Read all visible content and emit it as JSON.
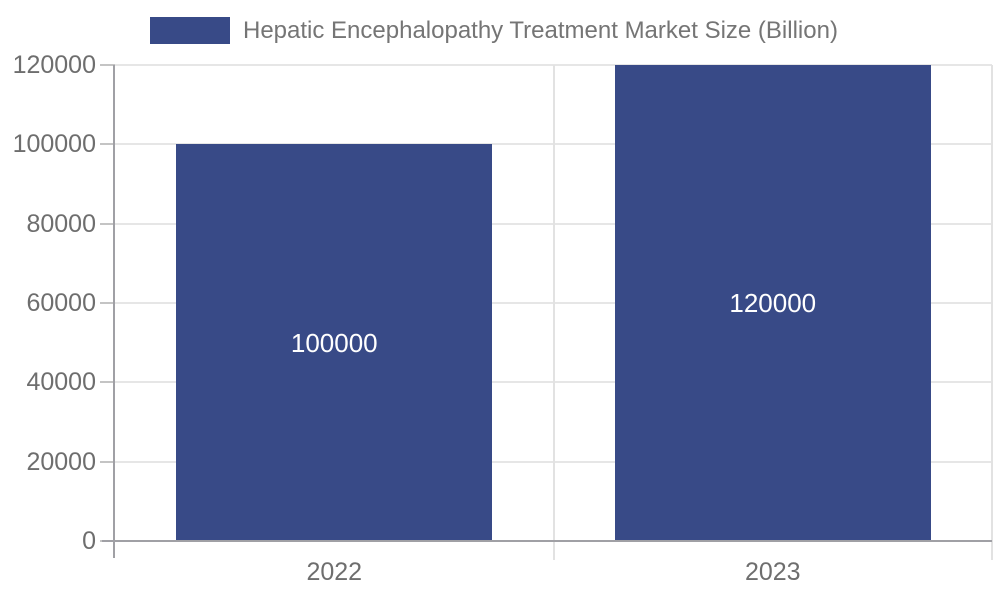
{
  "legend": {
    "label": "Hepatic Encephalopathy Treatment Market Size (Billion)"
  },
  "chart_data": {
    "type": "bar",
    "categories": [
      "2022",
      "2023"
    ],
    "series": [
      {
        "name": "Hepatic Encephalopathy Treatment Market Size (Billion)",
        "values": [
          100000,
          120000
        ]
      }
    ],
    "data_labels": [
      "100000",
      "120000"
    ],
    "title": "",
    "xlabel": "",
    "ylabel": "",
    "ylim": [
      0,
      120000
    ],
    "yticks": [
      0,
      20000,
      40000,
      60000,
      80000,
      100000,
      120000
    ],
    "grid": true,
    "legend_position": "top",
    "colors": {
      "bar": "#384A87",
      "axis_line": "#a0a0a5",
      "grid_line": "#e6e6e6",
      "boundary_line": "#e2e2e2",
      "tick_mark": "#c4c4c4",
      "axis_label": "#6e6e6e",
      "legend_text": "#757575",
      "data_label": "#ffffff",
      "background": "#ffffff"
    }
  }
}
